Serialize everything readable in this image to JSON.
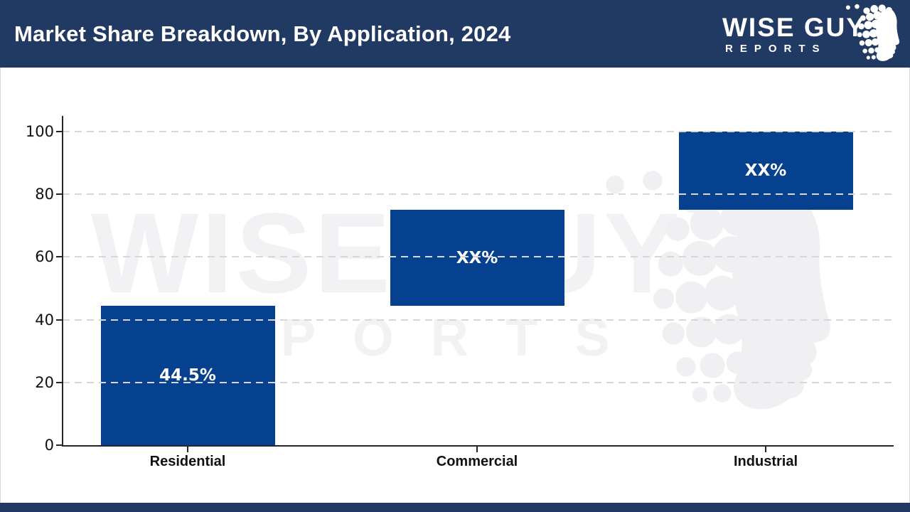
{
  "header": {
    "title": "Market Share Breakdown, By Application, 2024",
    "logo_line1": "WISE GUY",
    "logo_line2": "REPORTS"
  },
  "watermark": {
    "line1": "WISE GUY",
    "line2": "REPORTS"
  },
  "colors": {
    "header_bg": "#213a63",
    "footer_bg": "#213a63",
    "bar": "#06418f",
    "grid": "#d7d7d7",
    "axis": "#262626",
    "watermark": "#f2f2f5"
  },
  "chart_data": {
    "type": "bar",
    "subtype": "floating-waterfall",
    "title": "Market Share Breakdown, By Application, 2024",
    "categories": [
      "Residential",
      "Commercial",
      "Industrial"
    ],
    "segments": [
      {
        "category": "Residential",
        "from": 0,
        "to": 44.5,
        "label": "44.5%"
      },
      {
        "category": "Commercial",
        "from": 44.5,
        "to": 75,
        "label": "XX%"
      },
      {
        "category": "Industrial",
        "from": 75,
        "to": 100,
        "label": "XX%"
      }
    ],
    "ylim": [
      0,
      100
    ],
    "yticks": [
      0,
      20,
      40,
      60,
      80,
      100
    ],
    "xlabel": "",
    "ylabel": "",
    "grid": "horizontal-dashed",
    "legend": "none",
    "bar_color": "#06418f",
    "value_label_color": "#ffffff"
  }
}
